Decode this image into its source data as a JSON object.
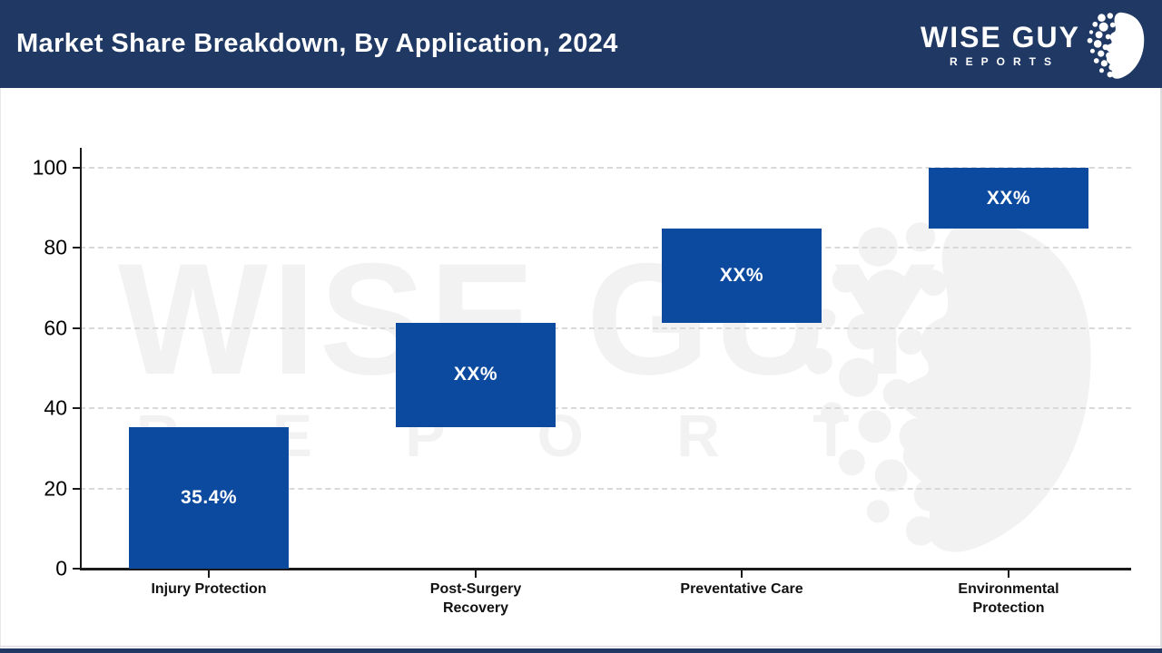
{
  "header": {
    "title": "Market Share Breakdown, By Application, 2024",
    "bg_color": "#1f3864",
    "logo": {
      "line1": "WISE GUY",
      "line2": "REPORTS",
      "icon": "dotted-head-profile"
    }
  },
  "watermark": {
    "line1": "WISE GUY",
    "line2": "R E P O R T S",
    "icon": "dotted-head-profile",
    "color": "#f2f2f2"
  },
  "chart_data": {
    "type": "bar",
    "subtype": "waterfall",
    "title": "Market Share Breakdown, By Application, 2024",
    "categories": [
      "Injury Protection",
      "Post-Surgery\nRecovery",
      "Preventative Care",
      "Environmental\nProtection"
    ],
    "segments": [
      {
        "category": "Injury Protection",
        "start": 0,
        "end": 35.4,
        "value": 35.4,
        "label": "35.4%"
      },
      {
        "category": "Post-Surgery Recovery",
        "start": 35.4,
        "end": 61.4,
        "value": 26.0,
        "label": "XX%"
      },
      {
        "category": "Preventative Care",
        "start": 61.4,
        "end": 84.8,
        "value": 23.4,
        "label": "XX%"
      },
      {
        "category": "Environmental Protection",
        "start": 84.8,
        "end": 100,
        "value": 15.2,
        "label": "XX%"
      }
    ],
    "yticks": [
      0,
      20,
      40,
      60,
      80,
      100
    ],
    "ylim": [
      0,
      105
    ],
    "xlabel": "",
    "ylabel": "",
    "grid": "horizontal-dashed",
    "legend": "none",
    "bar_color": "#0b4a9e",
    "bar_label_color": "#ffffff",
    "axis_color": "#1a1a1a",
    "grid_color": "#d9d9d9"
  }
}
